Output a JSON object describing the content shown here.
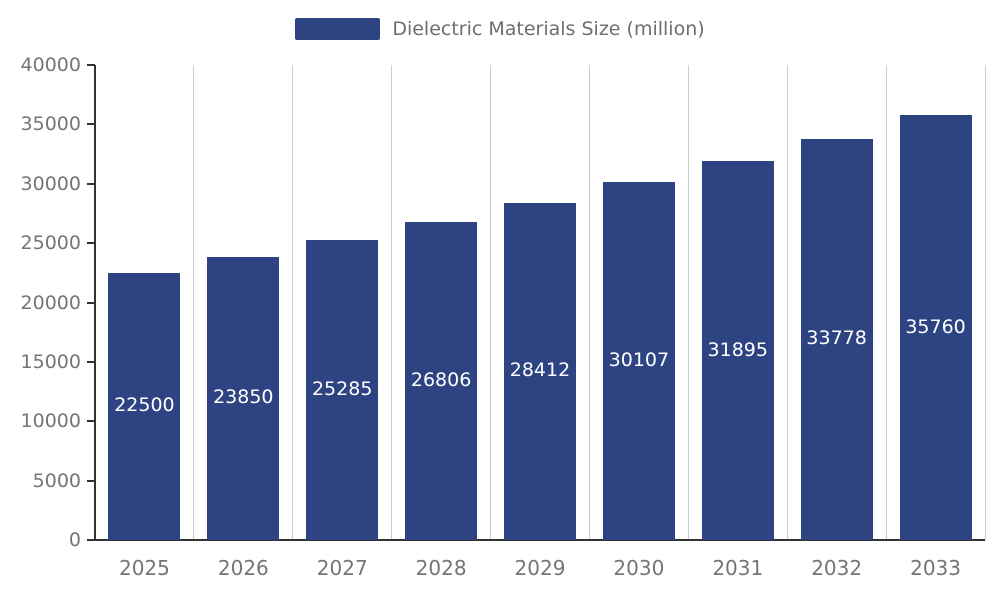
{
  "chart_data": {
    "type": "bar",
    "title": "Dielectric Materials Size (million)",
    "categories": [
      "2025",
      "2026",
      "2027",
      "2028",
      "2029",
      "2030",
      "2031",
      "2032",
      "2033"
    ],
    "values": [
      22500,
      23850,
      25285,
      26806,
      28412,
      30107,
      31895,
      33778,
      35760
    ],
    "xlabel": "",
    "ylabel": "",
    "ylim": [
      0,
      40000
    ],
    "ytick_step": 5000,
    "ytick_labels": [
      "0",
      "5000",
      "10000",
      "15000",
      "20000",
      "25000",
      "30000",
      "35000",
      "40000"
    ],
    "grid": "vertical",
    "legend_position": "top",
    "colors": {
      "bar": "#2e4482",
      "axis_line": "#333333",
      "gridline": "#cccccc",
      "tick_text": "#757575",
      "legend_text": "#6e6e6e",
      "value_label_text": "#ffffff"
    }
  }
}
